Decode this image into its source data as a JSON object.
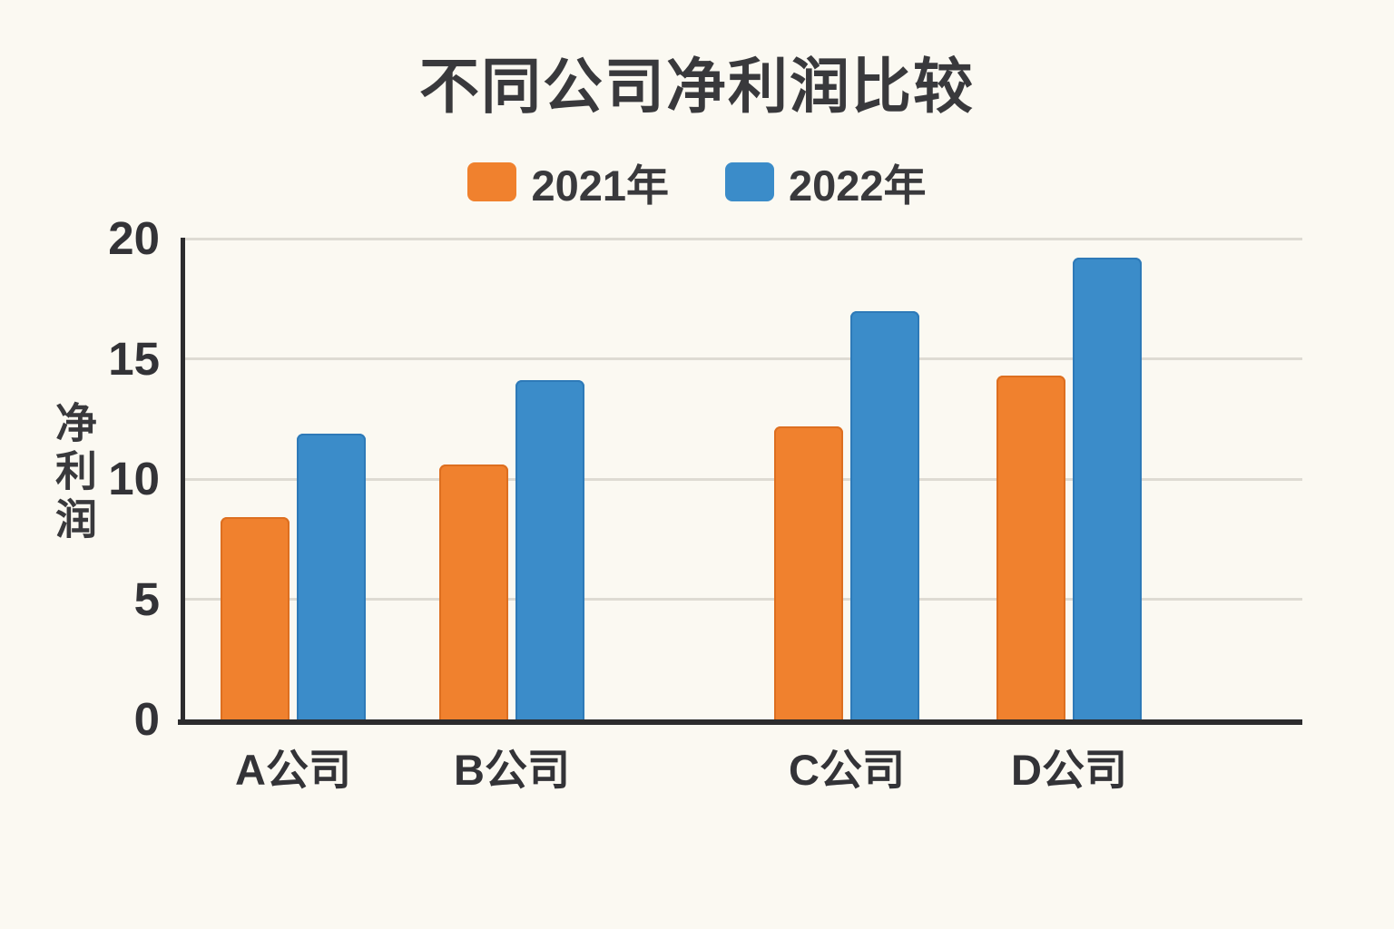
{
  "page": {
    "background_color": "#fbf9f2",
    "text_color": "#39393c",
    "gridline_color": "#dedbd3",
    "axis_color": "#2c2c2e"
  },
  "chart_data": {
    "type": "bar",
    "title": "不同公司净利润比较",
    "ylabel": "净利润",
    "xlabel": "",
    "categories": [
      "A公司",
      "B公司",
      "C公司",
      "D公司"
    ],
    "series": [
      {
        "name": "2021年",
        "color": "#f0812e",
        "edge": "#dd6f20",
        "values": [
          8.4,
          10.6,
          12.2,
          14.3
        ]
      },
      {
        "name": "2022年",
        "color": "#3b8cc9",
        "edge": "#2e7ab8",
        "values": [
          11.9,
          14.1,
          17.0,
          19.2
        ]
      }
    ],
    "ylim": [
      0,
      20
    ],
    "yticks": [
      0,
      5,
      10,
      15,
      20
    ],
    "grid": "horizontal",
    "legend_position": "top-center"
  }
}
